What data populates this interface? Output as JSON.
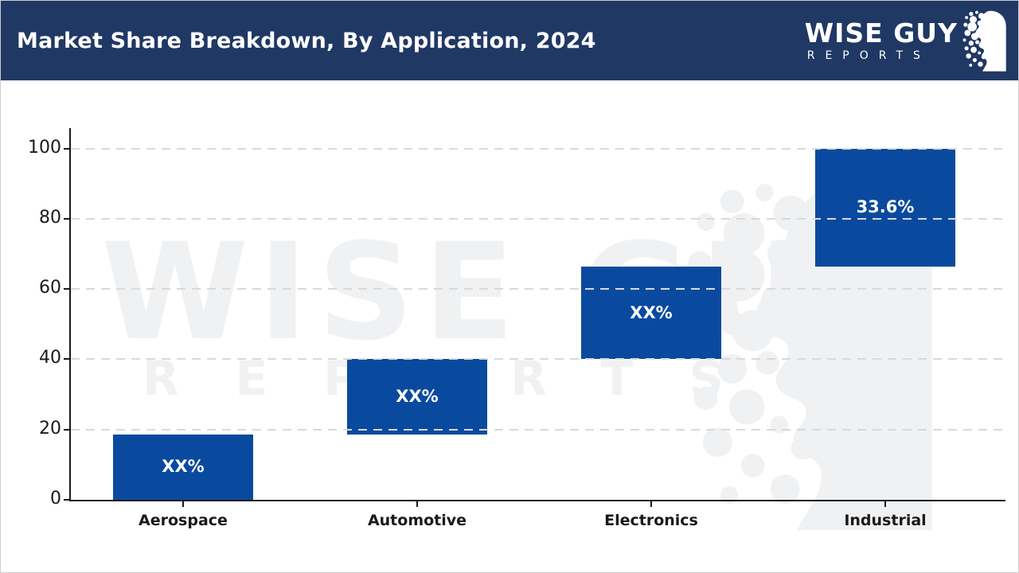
{
  "header": {
    "title": "Market Share Breakdown, By Application, 2024",
    "logo": {
      "wordmark": "WISE GUY",
      "subtext": "REPORTS"
    }
  },
  "watermark": {
    "line1": "WISE GUY",
    "line2": "REPORTS"
  },
  "chart_data": {
    "type": "bar",
    "subtype": "waterfall",
    "title": "Market Share Breakdown, By Application, 2024",
    "categories": [
      "Aerospace",
      "Automotive",
      "Electronics",
      "Industrial"
    ],
    "segments": [
      {
        "category": "Aerospace",
        "start": 0,
        "end": 18.6,
        "label": "XX%"
      },
      {
        "category": "Automotive",
        "start": 18.6,
        "end": 40,
        "label": "XX%"
      },
      {
        "category": "Electronics",
        "start": 40,
        "end": 66.4,
        "label": "XX%"
      },
      {
        "category": "Industrial",
        "start": 66.4,
        "end": 100,
        "label": "33.6%"
      }
    ],
    "yticks": [
      0,
      20,
      40,
      60,
      80,
      100
    ],
    "ylim": [
      0,
      105
    ],
    "xlabel": "",
    "ylabel": "",
    "grid": "horizontal-dashed",
    "legend": "none",
    "colors": {
      "bar": "#0a4a9e",
      "bar_label": "#ffffff",
      "grid": "#d9d9d9",
      "axis": "#1a1a1a",
      "header_bg": "#203864",
      "watermark": "#f0f1f3"
    }
  }
}
